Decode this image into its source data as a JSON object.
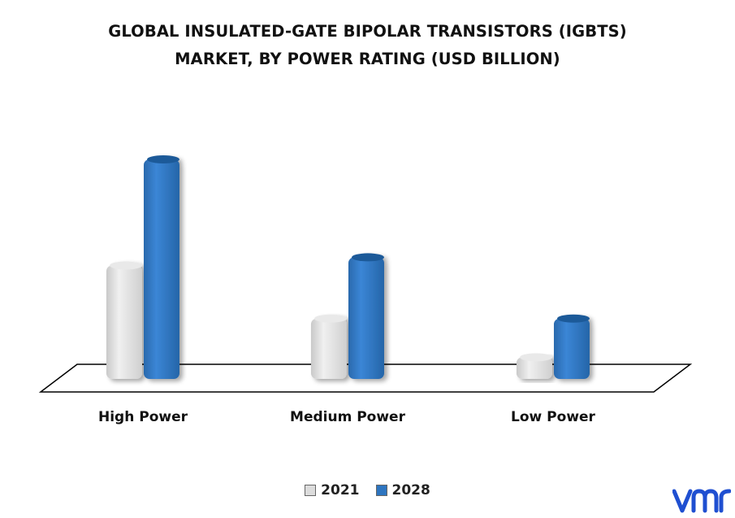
{
  "chart_data": {
    "type": "bar",
    "title_lines": [
      "GLOBAL INSULATED-GATE BIPOLAR TRANSISTORS (IGBTS)",
      "MARKET, BY POWER RATING (USD BILLION)"
    ],
    "categories": [
      "High Power",
      "Medium Power",
      "Low Power"
    ],
    "series": [
      {
        "name": "2021",
        "values": [
          2.9,
          1.6,
          0.65
        ],
        "color": "#dcdcdc"
      },
      {
        "name": "2028",
        "values": [
          5.5,
          3.1,
          1.6
        ],
        "color": "#2e75c0"
      }
    ],
    "xlabel": "",
    "ylabel": "",
    "ylim": [
      0,
      5.5
    ],
    "grid": false,
    "legend_position": "bottom"
  },
  "logo": {
    "name": "vmr-logo",
    "color": "#1f4fd1"
  }
}
